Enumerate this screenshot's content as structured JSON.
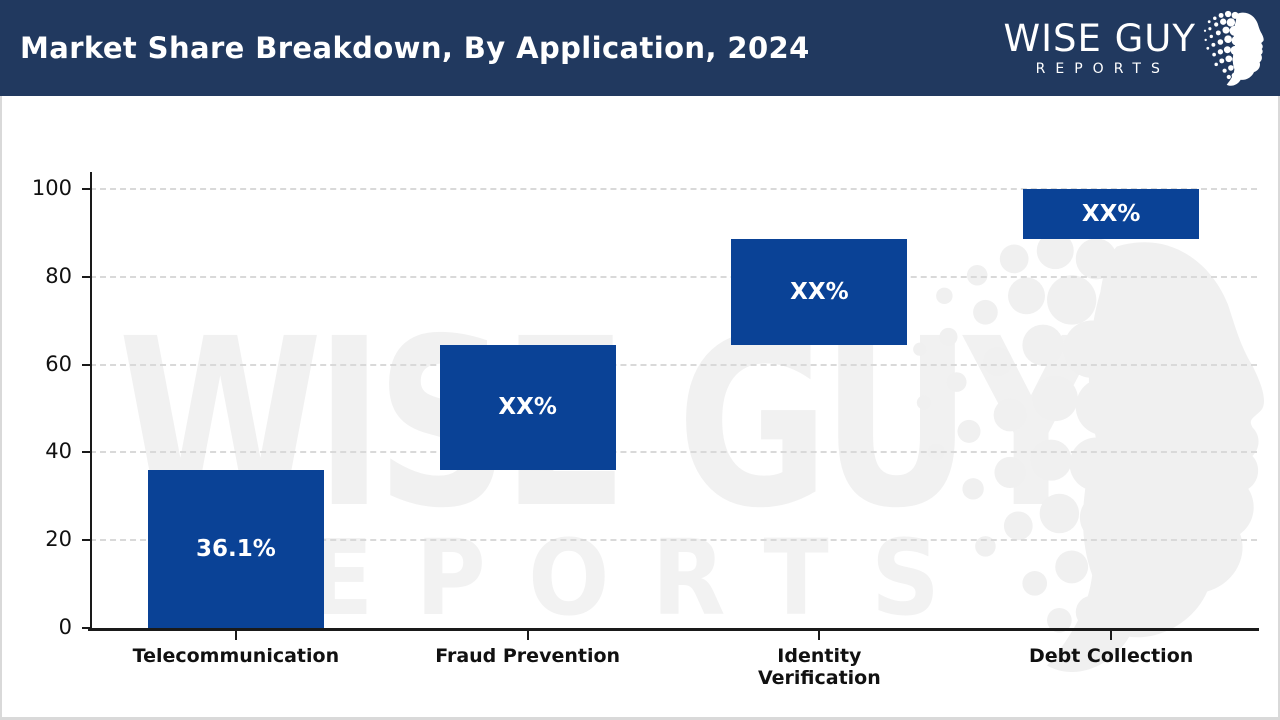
{
  "header": {
    "title": "Market Share Breakdown, By Application, 2024",
    "bg_color": "#21395f",
    "logo": {
      "line1": "WISE GUY",
      "line2": "REPORTS"
    }
  },
  "watermark": {
    "line1": "WISE GUY",
    "line2": "REPORTS"
  },
  "chart_data": {
    "type": "bar",
    "subtype": "floating-waterfall",
    "title": "Market Share Breakdown, By Application, 2024",
    "categories": [
      "Telecommunication",
      "Fraud Prevention",
      "Identity Verification",
      "Debt Collection"
    ],
    "segments": [
      {
        "category": "Telecommunication",
        "start": 0,
        "end": 36.1,
        "label": "36.1%"
      },
      {
        "category": "Fraud Prevention",
        "start": 36.1,
        "end": 64.5,
        "label": "XX%"
      },
      {
        "category": "Identity Verification",
        "start": 64.5,
        "end": 88.5,
        "label": "XX%"
      },
      {
        "category": "Debt Collection",
        "start": 88.5,
        "end": 100,
        "label": "XX%"
      }
    ],
    "bar_color": "#0a4296",
    "bar_label_color": "#ffffff",
    "yticks": [
      0,
      20,
      40,
      60,
      80,
      100
    ],
    "ylim": [
      0,
      105
    ],
    "xlabel": "",
    "ylabel": "",
    "grid": "horizontal-dashed",
    "legend": "none"
  }
}
